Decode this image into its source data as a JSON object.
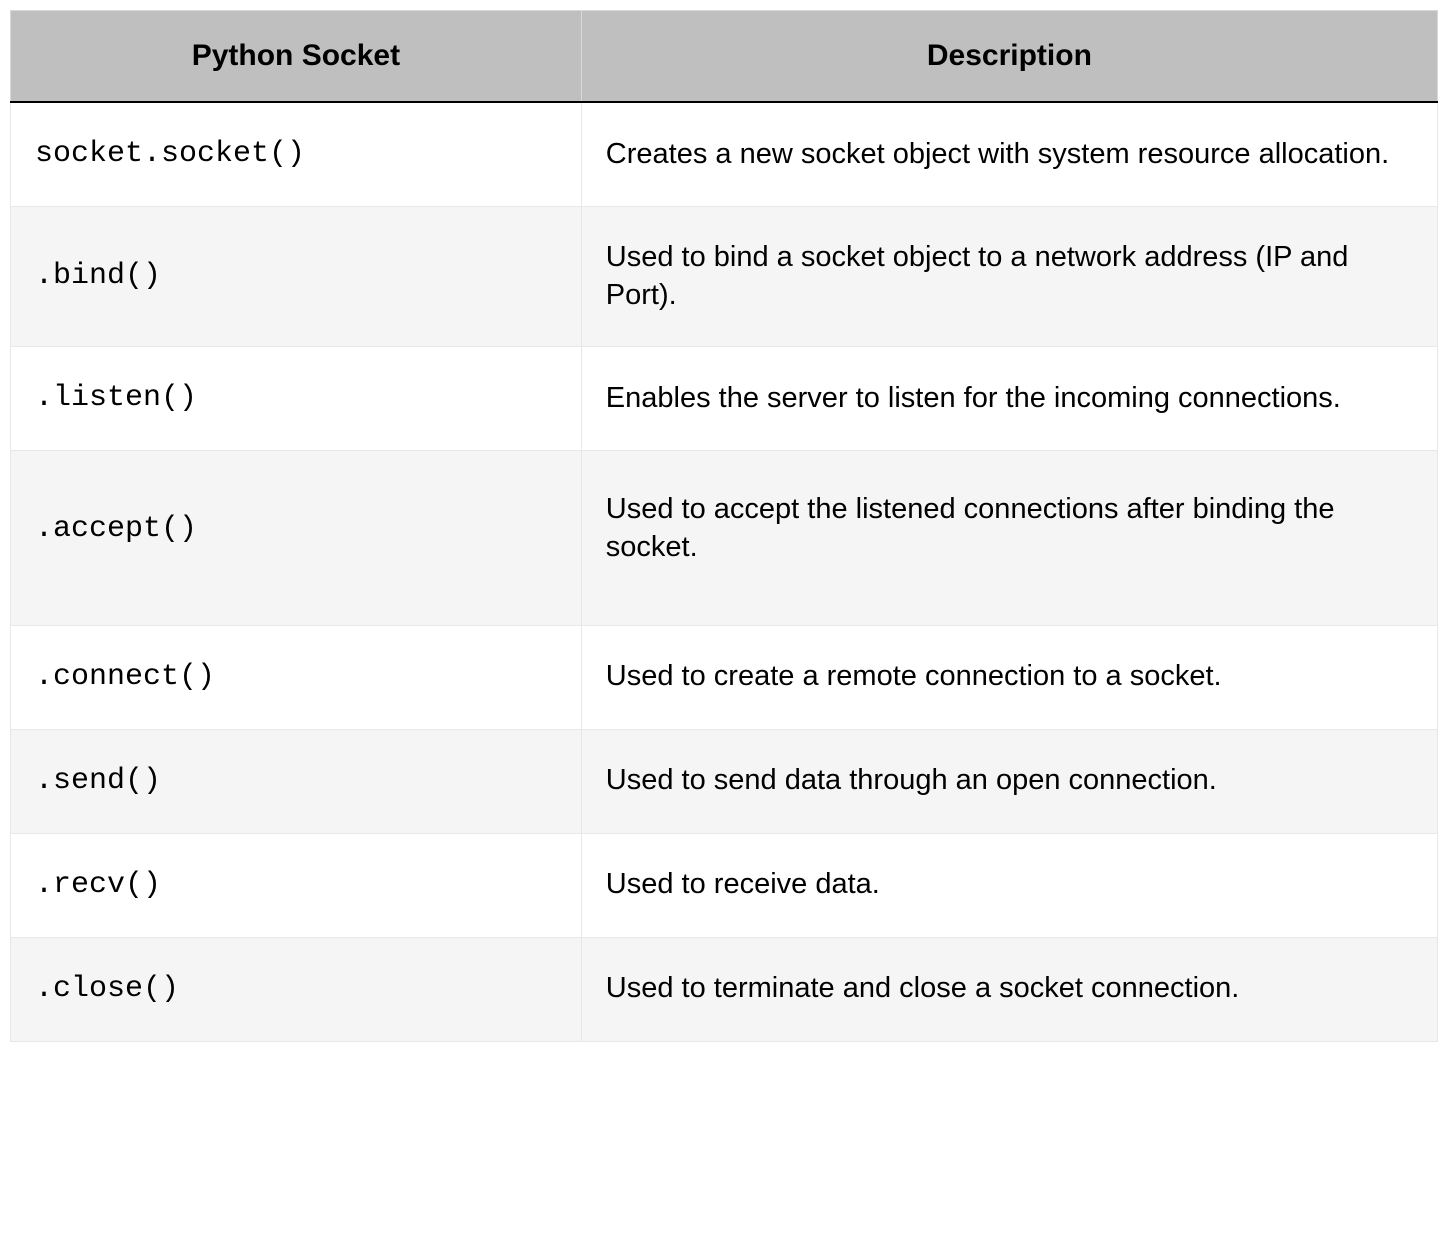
{
  "table": {
    "columns": [
      "Python Socket",
      "Description"
    ],
    "header_bg": "#bfbfbf",
    "stripe_colors": [
      "#ffffff",
      "#f5f5f5"
    ],
    "border_color": "#e8e8e8",
    "header_border_bottom": "#000000",
    "code_font": "monospace",
    "body_font": "Arial",
    "header_fontsize": 30,
    "cell_fontsize": 29,
    "rows": [
      {
        "method": "socket.socket()",
        "description": "Creates a new socket object with system resource allocation."
      },
      {
        "method": ".bind()",
        "description": "Used to bind a socket object to a network address (IP and Port)."
      },
      {
        "method": ".listen()",
        "description": "Enables the server to listen for the incoming connections."
      },
      {
        "method": ".accept()",
        "description": "Used to accept the listened connections after binding the socket."
      },
      {
        "method": ".connect()",
        "description": "Used to create a remote connection to a socket."
      },
      {
        "method": ".send()",
        "description": "Used to send data through an open connection."
      },
      {
        "method": ".recv()",
        "description": "Used to receive data."
      },
      {
        "method": ".close()",
        "description": "Used to terminate and close a socket connection."
      }
    ]
  }
}
